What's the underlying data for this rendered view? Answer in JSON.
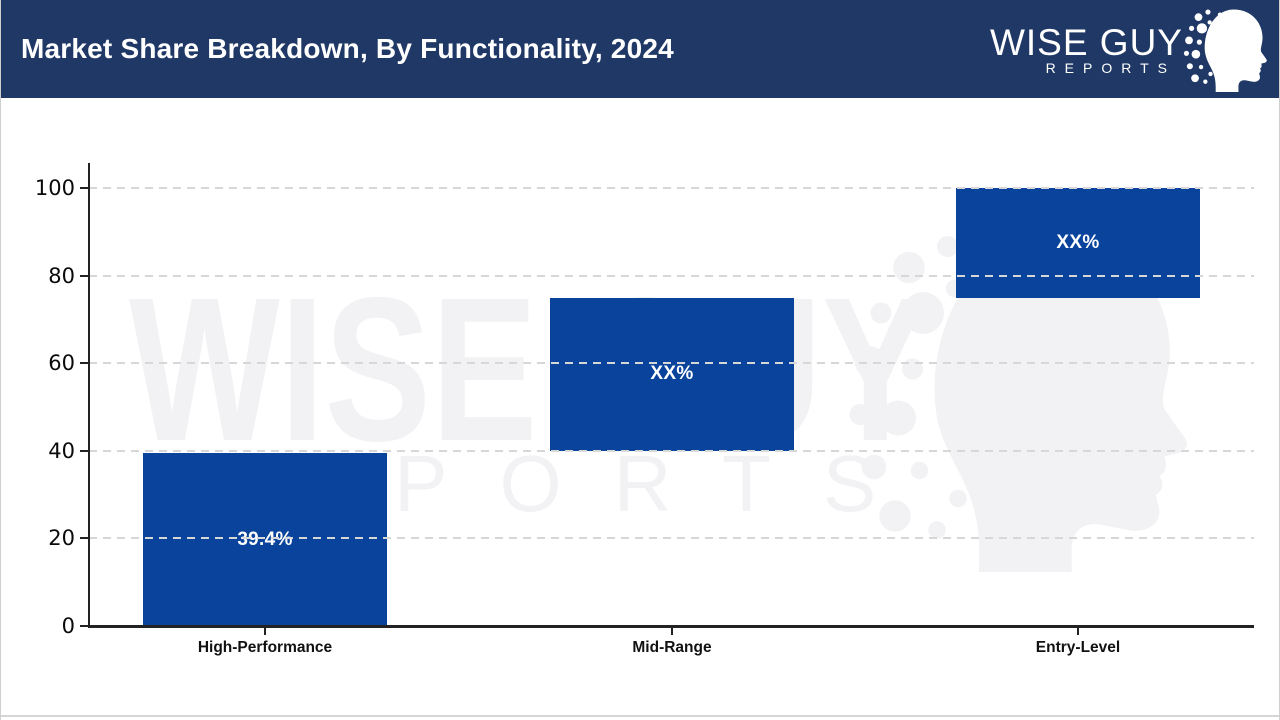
{
  "header": {
    "title": "Market Share Breakdown, By Functionality, 2024",
    "bg_color": "#203866",
    "logo": {
      "line1": "WISE GUY",
      "line2": "REPORTS"
    }
  },
  "watermark": {
    "line1": "WISE GUY",
    "line2": "REPORTS"
  },
  "chart_data": {
    "type": "bar",
    "subtype": "waterfall-stacked",
    "title": "Market Share Breakdown, By Functionality, 2024",
    "categories": [
      "High-Performance",
      "Mid-Range",
      "Entry-Level"
    ],
    "segments": [
      {
        "category": "High-Performance",
        "start": 0,
        "end": 39.4,
        "label": "39.4%"
      },
      {
        "category": "Mid-Range",
        "start": 40,
        "end": 75,
        "label": "XX%"
      },
      {
        "category": "Entry-Level",
        "start": 75,
        "end": 100,
        "label": "XX%"
      }
    ],
    "xlabel": "",
    "ylabel": "",
    "ylim": [
      0,
      100
    ],
    "yticks": [
      0,
      20,
      40,
      60,
      80,
      100
    ],
    "grid": "horizontal dashed, drawn above bars",
    "bar_color": "#09439b",
    "label_color": "#ffffff",
    "axis_color": "#222222"
  }
}
